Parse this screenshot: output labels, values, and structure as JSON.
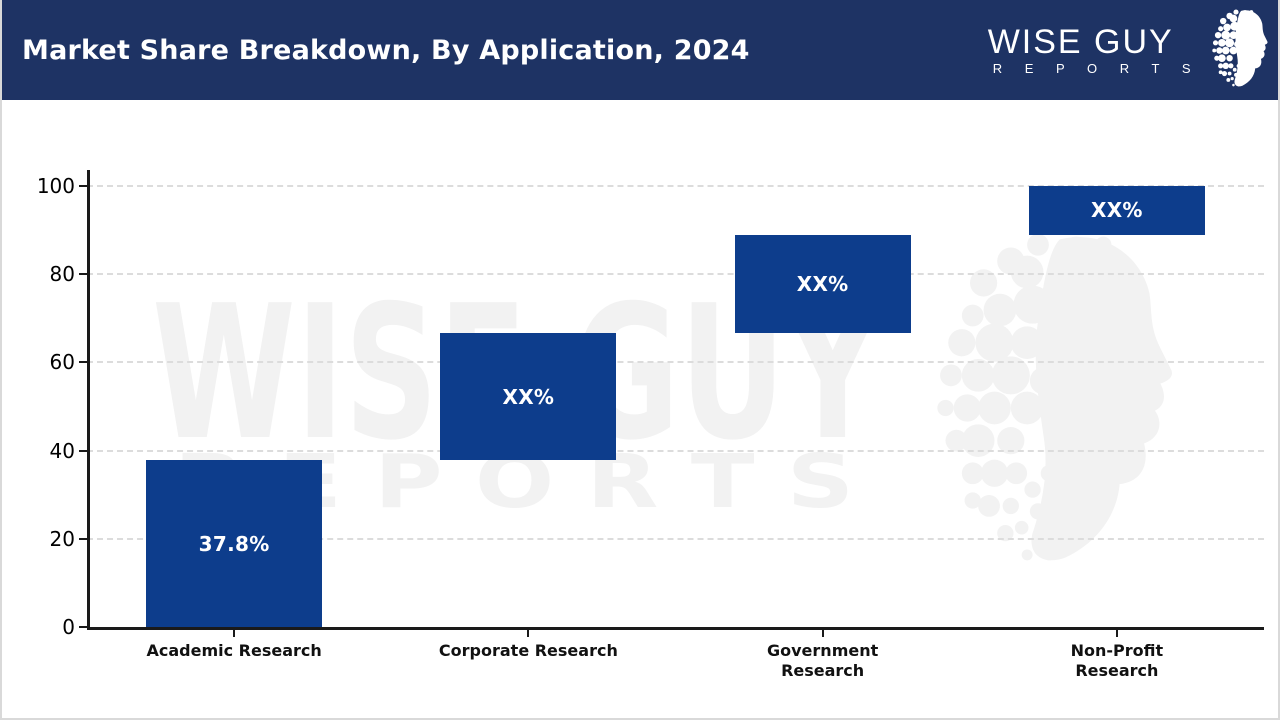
{
  "header": {
    "title": "Market Share Breakdown, By Application, 2024",
    "bg_color": "#1e3364",
    "logo": {
      "line1": "WISE GUY",
      "line2": "R E P O R T S"
    }
  },
  "watermark": {
    "line1": "WISE GUY",
    "line2": "R E P O R T S",
    "color": "#f2f2f2"
  },
  "chart_data": {
    "type": "bar",
    "subtype": "waterfall",
    "title": "Market Share Breakdown, By Application, 2024",
    "categories": [
      "Academic Research",
      "Corporate Research",
      "Government Research",
      "Non-Profit Research"
    ],
    "xtick_display_labels": [
      "Academic Research",
      "Corporate Research",
      "Government\nResearch",
      "Non-Profit\nResearch"
    ],
    "segments": [
      {
        "category": "Academic Research",
        "base": 0,
        "top": 37.8,
        "value_label": "37.8%"
      },
      {
        "category": "Corporate Research",
        "base": 37.8,
        "top": 66.6,
        "value_label": "XX%"
      },
      {
        "category": "Government Research",
        "base": 66.6,
        "top": 88.9,
        "value_label": "XX%"
      },
      {
        "category": "Non-Profit Research",
        "base": 88.9,
        "top": 100,
        "value_label": "XX%"
      }
    ],
    "ylim": [
      0,
      100
    ],
    "yticks": [
      0,
      20,
      40,
      60,
      80,
      100
    ],
    "xlabel": "",
    "ylabel": "",
    "grid": "horizontal-dashed",
    "grid_color": "#dcdcdc",
    "axis_color": "#1a1a1a",
    "bar_color": "#0d3d8c",
    "bar_value_label_color": "#ffffff",
    "legend": "none"
  }
}
